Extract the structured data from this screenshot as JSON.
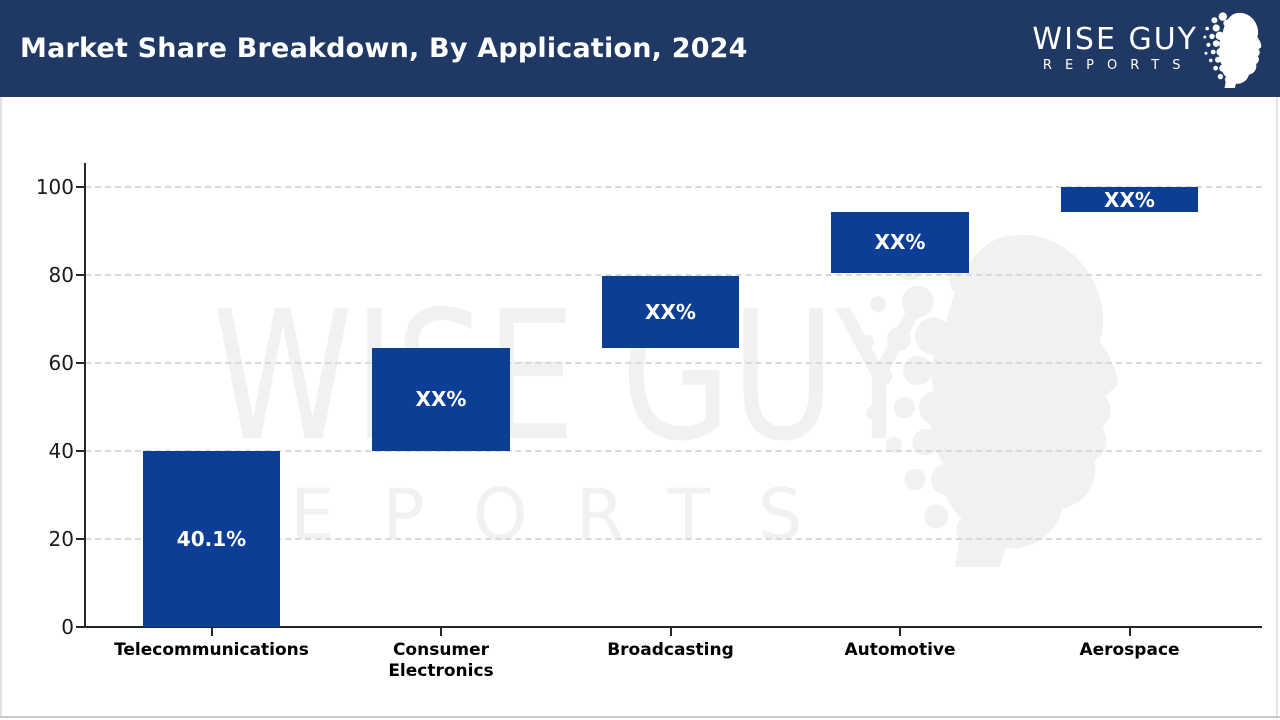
{
  "header": {
    "title": "Market Share Breakdown, By Application, 2024",
    "logo": {
      "line1": "WISE GUY",
      "line2": "REPORTS"
    }
  },
  "watermark": {
    "line1": "WISE GUY",
    "line2": "REPORTS"
  },
  "chart_data": {
    "type": "bar",
    "subtype": "waterfall-floating-bars",
    "title": "Market Share Breakdown, By Application, 2024",
    "categories": [
      "Telecommunications",
      "Consumer\nElectronics",
      "Broadcasting",
      "Automotive",
      "Aerospace"
    ],
    "segments": [
      {
        "category": "Telecommunications",
        "start": 0,
        "end": 40.1,
        "label": "40.1%"
      },
      {
        "category": "Consumer Electronics",
        "start": 40.1,
        "end": 63.4,
        "label": "XX%"
      },
      {
        "category": "Broadcasting",
        "start": 63.4,
        "end": 79.8,
        "label": "XX%"
      },
      {
        "category": "Automotive",
        "start": 80.5,
        "end": 94.3,
        "label": "XX%"
      },
      {
        "category": "Aerospace",
        "start": 94.3,
        "end": 100,
        "label": "XX%"
      }
    ],
    "y_ticks": [
      0,
      20,
      40,
      60,
      80,
      100
    ],
    "ylim": [
      0,
      105.5
    ],
    "grid": "horizontal-dashed",
    "legend": "none",
    "bar_color": "#0b3e94",
    "bar_label_color": "#ffffff",
    "axis_color": "#262626",
    "grid_color": "#d9d9d9"
  }
}
